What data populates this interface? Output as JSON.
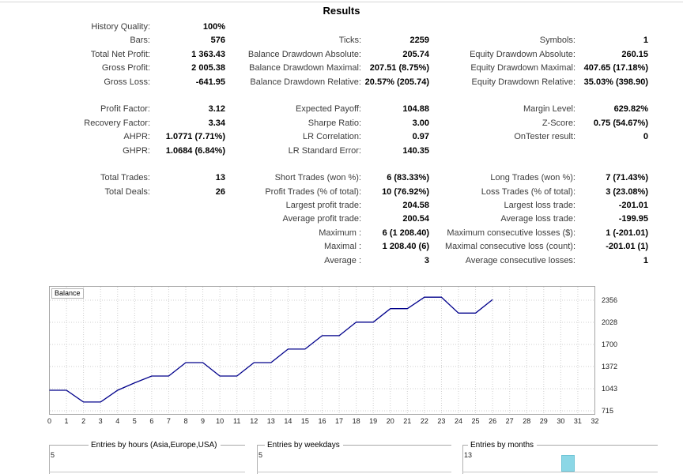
{
  "header": {
    "title": "Results"
  },
  "stats_rows": [
    {
      "c1l": "History Quality:",
      "c1v": "100%",
      "c2l": "",
      "c2v": "",
      "c3l": "",
      "c3v": ""
    },
    {
      "c1l": "Bars:",
      "c1v": "576",
      "c2l": "Ticks:",
      "c2v": "2259",
      "c3l": "Symbols:",
      "c3v": "1"
    },
    {
      "c1l": "Total Net Profit:",
      "c1v": "1 363.43",
      "c2l": "Balance Drawdown Absolute:",
      "c2v": "205.74",
      "c3l": "Equity Drawdown Absolute:",
      "c3v": "260.15"
    },
    {
      "c1l": "Gross Profit:",
      "c1v": "2 005.38",
      "c2l": "Balance Drawdown Maximal:",
      "c2v": "207.51 (8.75%)",
      "c3l": "Equity Drawdown Maximal:",
      "c3v": "407.65 (17.18%)"
    },
    {
      "c1l": "Gross Loss:",
      "c1v": "-641.95",
      "c2l": "Balance Drawdown Relative:",
      "c2v": "20.57% (205.74)",
      "c3l": "Equity Drawdown Relative:",
      "c3v": "35.03% (398.90)"
    },
    {
      "c1l": "",
      "c1v": "",
      "c2l": "",
      "c2v": "",
      "c3l": "",
      "c3v": ""
    },
    {
      "c1l": "Profit Factor:",
      "c1v": "3.12",
      "c2l": "Expected Payoff:",
      "c2v": "104.88",
      "c3l": "Margin Level:",
      "c3v": "629.82%"
    },
    {
      "c1l": "Recovery Factor:",
      "c1v": "3.34",
      "c2l": "Sharpe Ratio:",
      "c2v": "3.00",
      "c3l": "Z-Score:",
      "c3v": "0.75 (54.67%)"
    },
    {
      "c1l": "AHPR:",
      "c1v": "1.0771 (7.71%)",
      "c2l": "LR Correlation:",
      "c2v": "0.97",
      "c3l": "OnTester result:",
      "c3v": "0"
    },
    {
      "c1l": "GHPR:",
      "c1v": "1.0684 (6.84%)",
      "c2l": "LR Standard Error:",
      "c2v": "140.35",
      "c3l": "",
      "c3v": ""
    },
    {
      "c1l": "",
      "c1v": "",
      "c2l": "",
      "c2v": "",
      "c3l": "",
      "c3v": ""
    },
    {
      "c1l": "Total Trades:",
      "c1v": "13",
      "c2l": "Short Trades (won %):",
      "c2v": "6 (83.33%)",
      "c3l": "Long Trades (won %):",
      "c3v": "7 (71.43%)"
    },
    {
      "c1l": "Total Deals:",
      "c1v": "26",
      "c2l": "Profit Trades (% of total):",
      "c2v": "10 (76.92%)",
      "c3l": "Loss Trades (% of total):",
      "c3v": "3 (23.08%)"
    },
    {
      "c1l": "",
      "c1v": "",
      "c2l": "Largest profit trade:",
      "c2v": "204.58",
      "c3l": "Largest loss trade:",
      "c3v": "-201.01"
    },
    {
      "c1l": "",
      "c1v": "",
      "c2l": "Average profit trade:",
      "c2v": "200.54",
      "c3l": "Average loss trade:",
      "c3v": "-199.95"
    },
    {
      "c1l": "",
      "c1v": "",
      "c2l": "Maximum :",
      "c2v": "6 (1 208.40)",
      "c3l": "Maximum consecutive losses ($):",
      "c3v": "1 (-201.01)"
    },
    {
      "c1l": "",
      "c1v": "",
      "c2l": "Maximal :",
      "c2v": "1 208.40 (6)",
      "c3l": "Maximal consecutive loss (count):",
      "c3v": "-201.01 (1)"
    },
    {
      "c1l": "",
      "c1v": "",
      "c2l": "Average :",
      "c2v": "3",
      "c3l": "Average consecutive losses:",
      "c3v": "1"
    }
  ],
  "chart_data": [
    {
      "type": "line",
      "title": "Balance",
      "x": [
        0,
        1,
        2,
        3,
        4,
        5,
        6,
        7,
        8,
        9,
        10,
        11,
        12,
        13,
        14,
        15,
        16,
        17,
        18,
        19,
        20,
        21,
        22,
        23,
        24,
        25,
        26
      ],
      "series": [
        {
          "name": "Balance",
          "values": [
            1020,
            1020,
            845,
            845,
            1020,
            1130,
            1230,
            1230,
            1430,
            1430,
            1230,
            1230,
            1430,
            1430,
            1630,
            1630,
            1830,
            1830,
            2030,
            2030,
            2230,
            2230,
            2400,
            2400,
            2165,
            2165,
            2365
          ]
        }
      ],
      "x_ticks": [
        0,
        1,
        2,
        3,
        4,
        5,
        6,
        7,
        8,
        9,
        10,
        11,
        12,
        13,
        14,
        15,
        16,
        17,
        18,
        19,
        20,
        21,
        22,
        23,
        24,
        25,
        26,
        27,
        28,
        29,
        30,
        31,
        32
      ],
      "y_ticks": [
        2356,
        2028,
        1700,
        1372,
        1043,
        715
      ],
      "xlim": [
        0,
        32
      ],
      "ylim": [
        656,
        2567
      ],
      "grid": true,
      "legend_position": "top-left",
      "colors": {
        "line": "#00008B",
        "grid": "#CFCFCF",
        "border": "#A6A6A6"
      }
    },
    {
      "type": "bar",
      "title": "Entries by hours (Asia,Europe,USA)",
      "y_top_label": "5"
    },
    {
      "type": "bar",
      "title": "Entries by weekdays",
      "y_top_label": "5"
    },
    {
      "type": "bar",
      "title": "Entries by months",
      "y_top_label": "13",
      "bars": [
        {
          "value": 13,
          "color": "#8BD7E6"
        }
      ]
    }
  ]
}
